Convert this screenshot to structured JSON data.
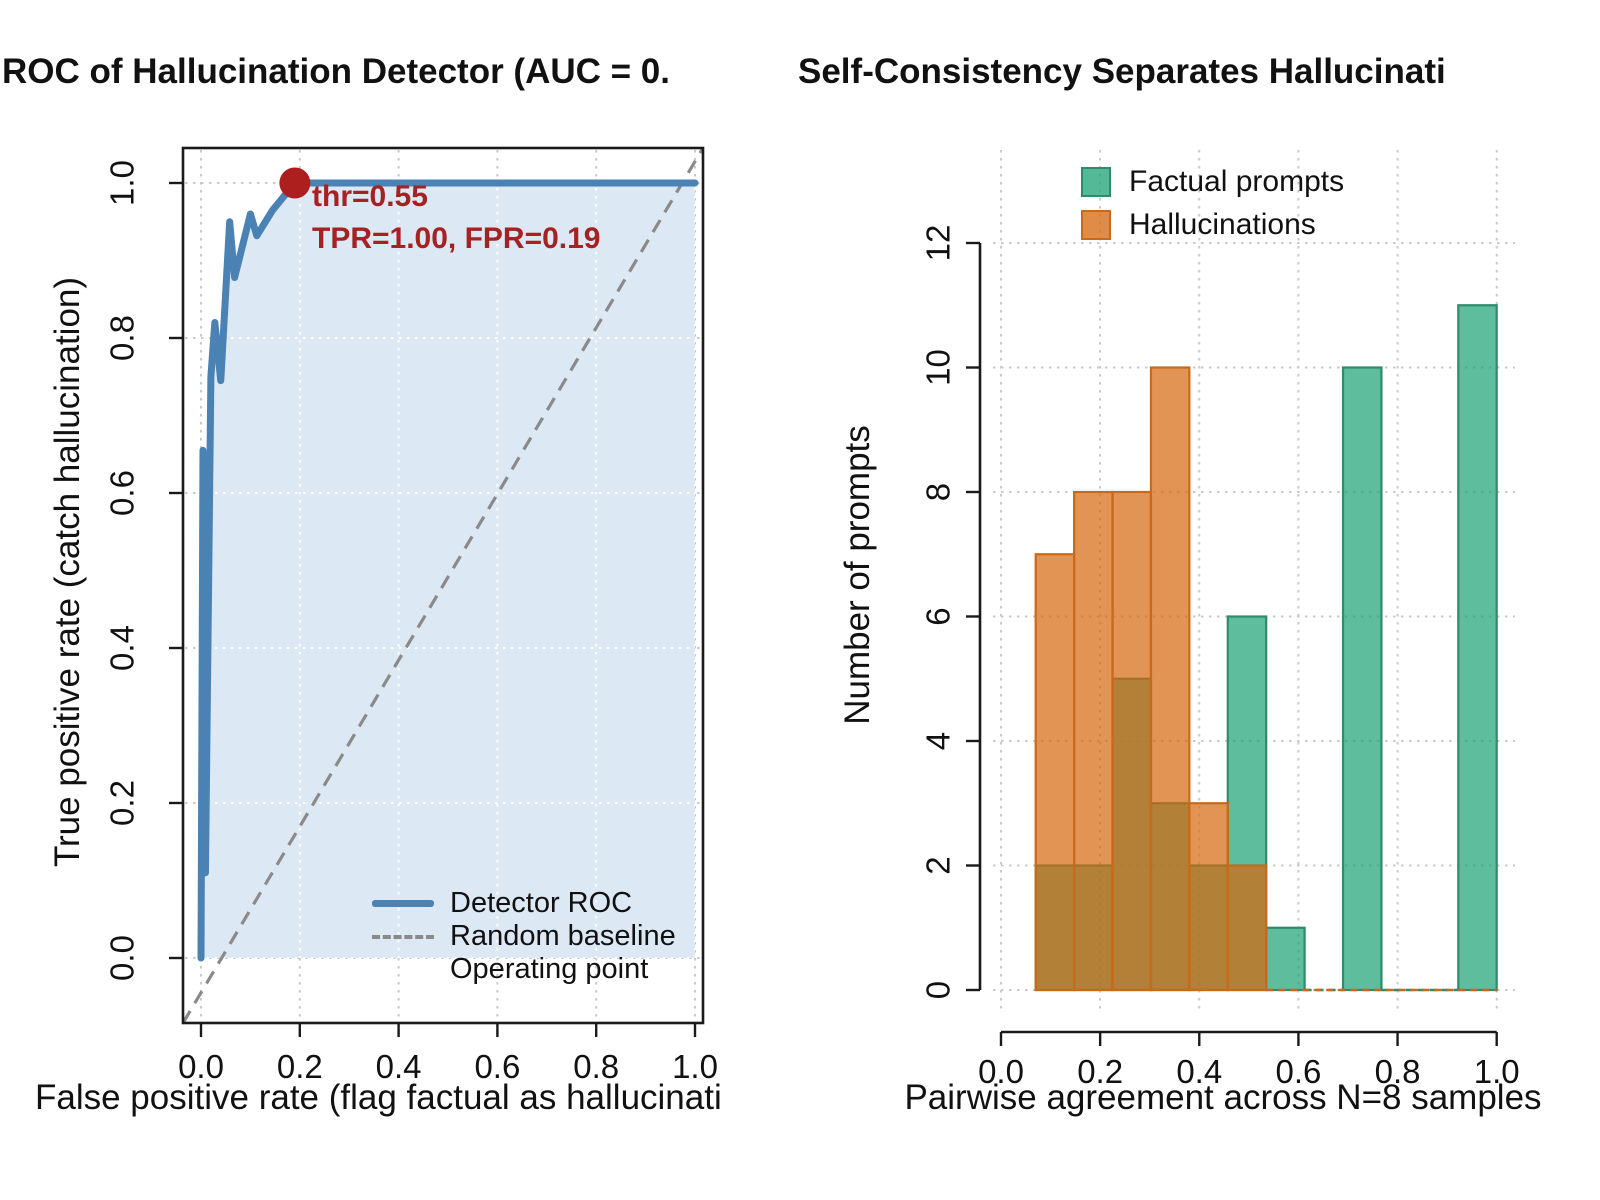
{
  "figure": {
    "background": "#ffffff"
  },
  "colors": {
    "roc_line": "#4a82b4",
    "roc_fill": "#dce8f4",
    "baseline_gray": "#8a8a8a",
    "operating_red": "#ad1f1f",
    "annotation_red": "#a62121",
    "factual_green_fill": "rgba(26,161,116,0.7)",
    "factual_green_edge": "#2e8b6e",
    "halluc_orange_fill": "rgba(214,102,12,0.7)",
    "halluc_orange_edge": "#c96a1a",
    "grid": "#c9c9c9",
    "axis": "#1a1a1a"
  },
  "chart_data": [
    {
      "type": "line",
      "title": "ROC of Hallucination Detector (AUC = 0.",
      "xlabel": "False positive rate (flag factual as hallucinati",
      "ylabel": "True positive rate (catch hallucination)",
      "xlim": [
        0,
        1
      ],
      "ylim": [
        0,
        1
      ],
      "x_ticks": [
        "0.0",
        "0.2",
        "0.4",
        "0.6",
        "0.8",
        "1.0"
      ],
      "y_ticks": [
        "0.0",
        "0.2",
        "0.4",
        "0.6",
        "0.8",
        "1.0"
      ],
      "grid": true,
      "series": [
        {
          "name": "Detector ROC",
          "type": "line",
          "color": "#4a82b4",
          "points": [
            [
              0,
              0
            ],
            [
              0.004,
              0.655
            ],
            [
              0.009,
              0.11
            ],
            [
              0.02,
              0.75
            ],
            [
              0.028,
              0.82
            ],
            [
              0.04,
              0.745
            ],
            [
              0.058,
              0.95
            ],
            [
              0.068,
              0.878
            ],
            [
              0.1,
              0.96
            ],
            [
              0.113,
              0.932
            ],
            [
              0.145,
              0.965
            ],
            [
              0.19,
              1.0
            ],
            [
              1.0,
              1.0
            ]
          ]
        },
        {
          "name": "Random baseline",
          "type": "dashed-line",
          "color": "#8a8a8a",
          "points": [
            [
              0,
              0
            ],
            [
              1,
              1
            ]
          ]
        }
      ],
      "operating_point": {
        "fpr": 0.19,
        "tpr": 1.0,
        "threshold": 0.55,
        "color": "#ad1f1f"
      },
      "annotation": [
        "thr=0.55",
        "TPR=1.00, FPR=0.19"
      ],
      "fill_under_curve": "#dce8f4",
      "legend": [
        "Detector ROC",
        "Random baseline",
        "Operating point"
      ],
      "legend_position": "lower right"
    },
    {
      "type": "histogram",
      "title": "Self-Consistency Separates Hallucinati",
      "xlabel": "Pairwise agreement across N=8 samples",
      "ylabel": "Number of prompts",
      "xlim": [
        0,
        1
      ],
      "ylim": [
        0,
        12
      ],
      "x_ticks": [
        "0.0",
        "0.2",
        "0.4",
        "0.6",
        "0.8",
        "1.0"
      ],
      "y_ticks": [
        "0",
        "2",
        "4",
        "6",
        "8",
        "10",
        "12"
      ],
      "grid": true,
      "bin_edges": [
        0.07,
        0.1475,
        0.225,
        0.3025,
        0.38,
        0.4575,
        0.535,
        0.6125,
        0.69,
        0.7675,
        0.845,
        0.9225,
        1.0
      ],
      "series": [
        {
          "name": "Factual prompts",
          "fill": "rgba(26,161,116,0.7)",
          "edge": "#2e8b6e",
          "values": [
            2,
            2,
            5,
            3,
            2,
            6,
            1,
            0,
            10,
            0,
            0,
            11
          ]
        },
        {
          "name": "Hallucinations",
          "fill": "rgba(214,102,12,0.7)",
          "edge": "#c96a1a",
          "values": [
            7,
            8,
            8,
            10,
            3,
            2,
            0,
            0,
            0,
            0,
            0,
            0
          ]
        }
      ],
      "legend": [
        "Factual prompts",
        "Hallucinations"
      ],
      "legend_position": "upper center"
    }
  ]
}
